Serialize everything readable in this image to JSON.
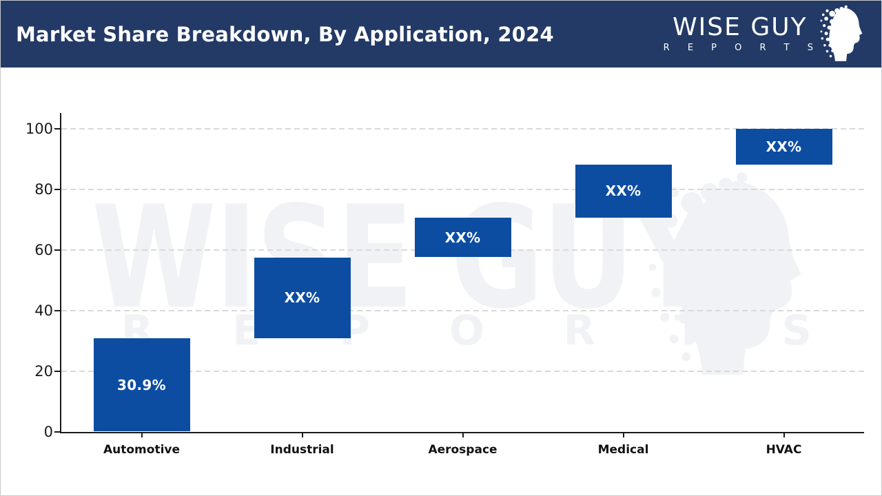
{
  "header": {
    "title": "Market Share Breakdown, By Application, 2024",
    "logo": {
      "name": "WISE GUY",
      "sub": "R E P O R T S"
    }
  },
  "watermark": {
    "line1": "WISE GUY",
    "line2": "R E P O R T S"
  },
  "colors": {
    "header_bg": "#233A66",
    "bar": "#0C4DA2",
    "axis": "#1A1A1A",
    "grid": "#D9D9D9",
    "watermark": "#F1F2F5",
    "label_on_bar": "#FFFFFF"
  },
  "chart_data": {
    "type": "bar",
    "subtype": "waterfall",
    "title": "Market Share Breakdown, By Application, 2024",
    "categories": [
      "Automotive",
      "Industrial",
      "Aerospace",
      "Medical",
      "HVAC"
    ],
    "segments": [
      {
        "category": "Automotive",
        "start": 0,
        "end": 30.9,
        "label": "30.9%"
      },
      {
        "category": "Industrial",
        "start": 30.9,
        "end": 57.5,
        "label": "XX%"
      },
      {
        "category": "Aerospace",
        "start": 57.5,
        "end": 70.6,
        "label": "XX%"
      },
      {
        "category": "Medical",
        "start": 70.6,
        "end": 88.1,
        "label": "XX%"
      },
      {
        "category": "HVAC",
        "start": 88.1,
        "end": 100,
        "label": "XX%"
      }
    ],
    "yticks": [
      0,
      20,
      40,
      60,
      80,
      100
    ],
    "ylim": [
      0,
      104.7
    ],
    "xlabel": "",
    "ylabel": "",
    "grid": "horizontal-dashed",
    "legend": "none",
    "bar_color": "#0C4DA2",
    "value_label_color": "#FFFFFF"
  }
}
